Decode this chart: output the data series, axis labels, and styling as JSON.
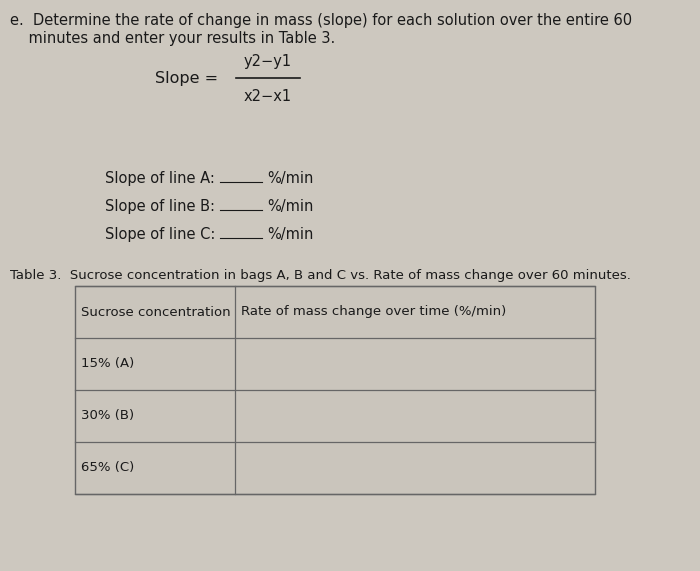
{
  "background_color": "#cdc8bf",
  "text_color": "#1a1a1a",
  "title_line1": "e.  Determine the rate of change in mass (slope) for each solution over the entire 60",
  "title_line2": "    minutes and enter your results in Table 3.",
  "slope_numerator": "y2−y1",
  "slope_denominator": "x2−x1",
  "slope_lines_label": [
    "Slope of line A:",
    "Slope of line B:",
    "Slope of line C:"
  ],
  "slope_lines_suffix": "%/min",
  "table_title": "Table 3.  Sucrose concentration in bags A, B and C vs. Rate of mass change over 60 minutes.",
  "table_headers": [
    "Sucrose concentration",
    "Rate of mass change over time (%/min)"
  ],
  "table_rows": [
    [
      "15% (A)",
      ""
    ],
    [
      "30% (B)",
      ""
    ],
    [
      "65% (C)",
      ""
    ]
  ],
  "font_size_body": 10.5,
  "font_size_table": 9.5,
  "font_size_title": 10.5
}
